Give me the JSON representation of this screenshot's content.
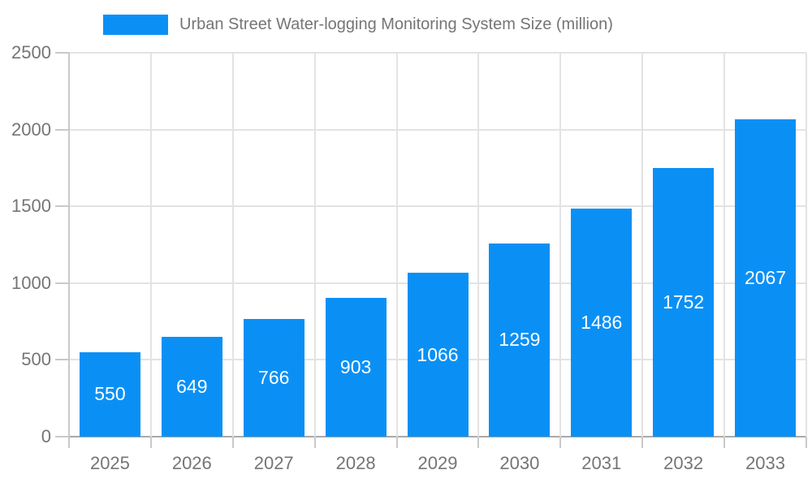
{
  "legend": {
    "label": "Urban Street Water-logging Monitoring System Size (million)"
  },
  "chart_data": {
    "type": "bar",
    "title": "Urban Street Water-logging Monitoring System Size (million)",
    "categories": [
      "2025",
      "2026",
      "2027",
      "2028",
      "2029",
      "2030",
      "2031",
      "2032",
      "2033"
    ],
    "values": [
      550,
      649,
      766,
      903,
      1066,
      1259,
      1486,
      1752,
      2067
    ],
    "series": [
      {
        "name": "Urban Street Water-logging Monitoring System Size (million)",
        "values": [
          550,
          649,
          766,
          903,
          1066,
          1259,
          1486,
          1752,
          2067
        ]
      }
    ],
    "xlabel": "",
    "ylabel": "",
    "ylim": [
      0,
      2500
    ],
    "yticks": [
      0,
      500,
      1000,
      1500,
      2000,
      2500
    ],
    "grid": true,
    "legend_position": "top-left",
    "value_labels": "inside-center",
    "colors": {
      "bar": "#0a90f5",
      "value_label": "#ffffff",
      "axis_text": "#757575",
      "gridline": "#e3e3e3",
      "tick_line": "#c9c9c9",
      "axis_line": "#a9a9a9"
    }
  }
}
